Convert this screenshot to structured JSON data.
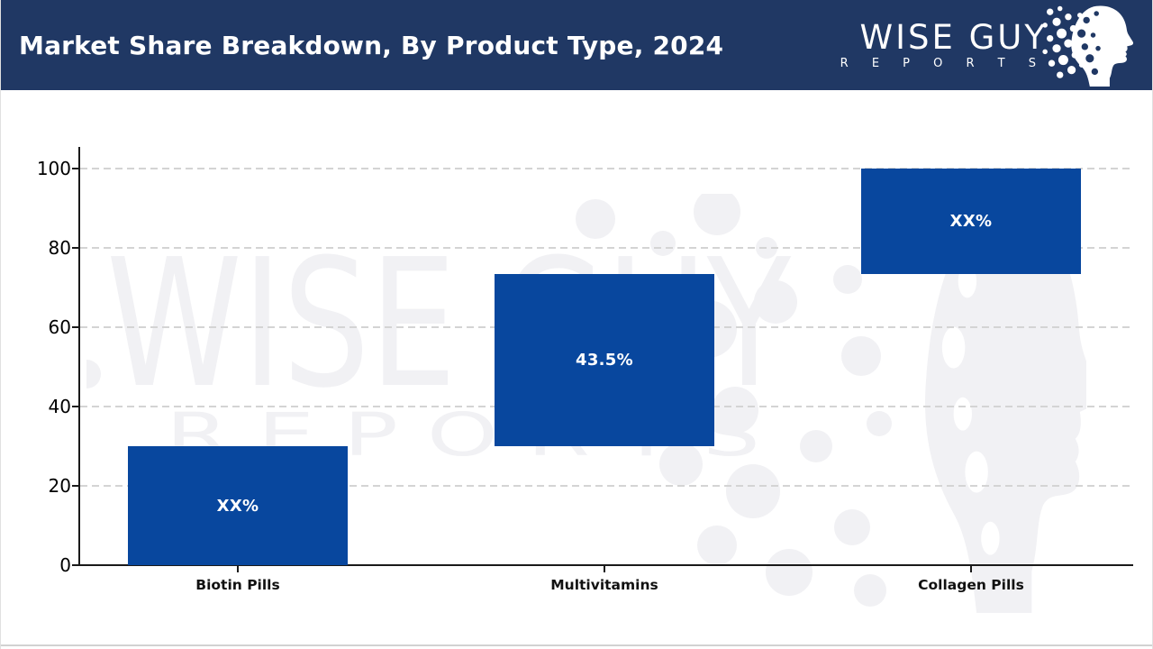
{
  "header": {
    "title": "Market Share Breakdown, By Product Type, 2024",
    "logo": {
      "line1": "WISE GUY",
      "line2": "R E P O R T S"
    }
  },
  "watermark": {
    "line1": "WISE GUY",
    "line2": "R E P O R T S"
  },
  "chart_data": {
    "type": "bar",
    "variant": "floating-segment-bars",
    "title": "Market Share Breakdown, By Product Type, 2024",
    "categories": [
      "Biotin Pills",
      "Multivitamins",
      "Collagen Pills"
    ],
    "segments": [
      {
        "category": "Biotin Pills",
        "start": 0,
        "end": 30,
        "label": "XX%"
      },
      {
        "category": "Multivitamins",
        "start": 30,
        "end": 73.5,
        "label": "43.5%"
      },
      {
        "category": "Collagen Pills",
        "start": 73.5,
        "end": 100,
        "label": "XX%"
      }
    ],
    "ylim": [
      0,
      100
    ],
    "yticks": [
      0,
      20,
      40,
      60,
      80,
      100
    ],
    "grid": "horizontal-dashed",
    "legend": "none",
    "colors": {
      "bar": "#08479e",
      "bar_label": "#ffffff",
      "axis": "#000000",
      "gridline": "#d4d4d4",
      "header_bg": "#203864",
      "header_text": "#ffffff",
      "watermark": "#f1f1f4"
    }
  }
}
